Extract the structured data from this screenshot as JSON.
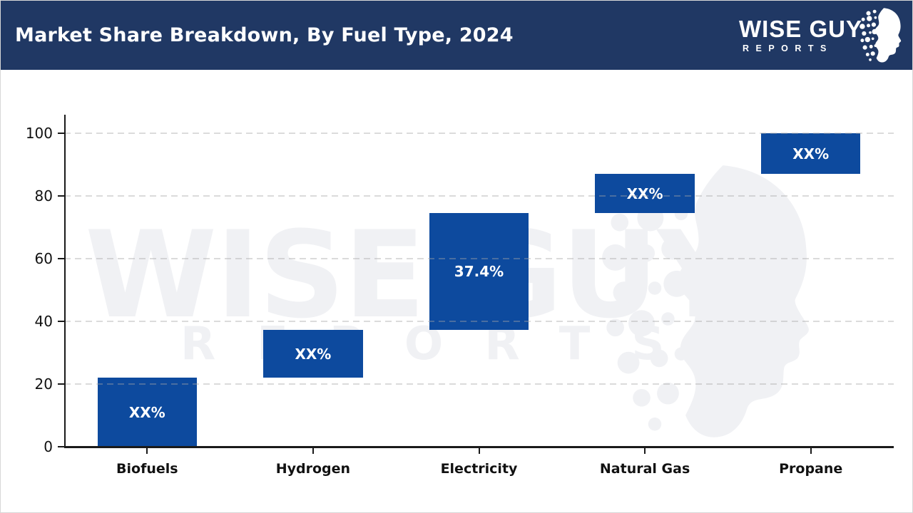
{
  "header": {
    "title": "Market Share Breakdown, By Fuel Type, 2024",
    "logo": {
      "wordmark": "WISE GUY",
      "subtitle": "REPORTS"
    }
  },
  "watermark": {
    "line1": "WISE GUY",
    "line2": "REPORTS"
  },
  "colors": {
    "header_bg": "#203864",
    "bar": "#0d4a9e",
    "bar_label": "#ffffff",
    "axis": "#1a1a1a",
    "gridline": "#dcdcdc",
    "watermark": "#f0f1f4"
  },
  "chart_data": {
    "type": "bar",
    "variant": "waterfall",
    "title": "Market Share Breakdown, By Fuel Type, 2024",
    "categories": [
      "Biofuels",
      "Hydrogen",
      "Electricity",
      "Natural Gas",
      "Propane"
    ],
    "segments": [
      {
        "category": "Biofuels",
        "start": 0,
        "end": 22,
        "label": "XX%"
      },
      {
        "category": "Hydrogen",
        "start": 22,
        "end": 37.2,
        "label": "XX%"
      },
      {
        "category": "Electricity",
        "start": 37.2,
        "end": 74.6,
        "label": "37.4%"
      },
      {
        "category": "Natural Gas",
        "start": 74.6,
        "end": 87.1,
        "label": "XX%"
      },
      {
        "category": "Propane",
        "start": 87.1,
        "end": 100,
        "label": "XX%"
      }
    ],
    "xlabel": "",
    "ylabel": "",
    "yticks": [
      0,
      20,
      40,
      60,
      80,
      100
    ],
    "ylim": [
      0,
      106
    ],
    "grid": "dashed-horizontal",
    "legend": "none",
    "bar_width_fraction": 0.6
  }
}
